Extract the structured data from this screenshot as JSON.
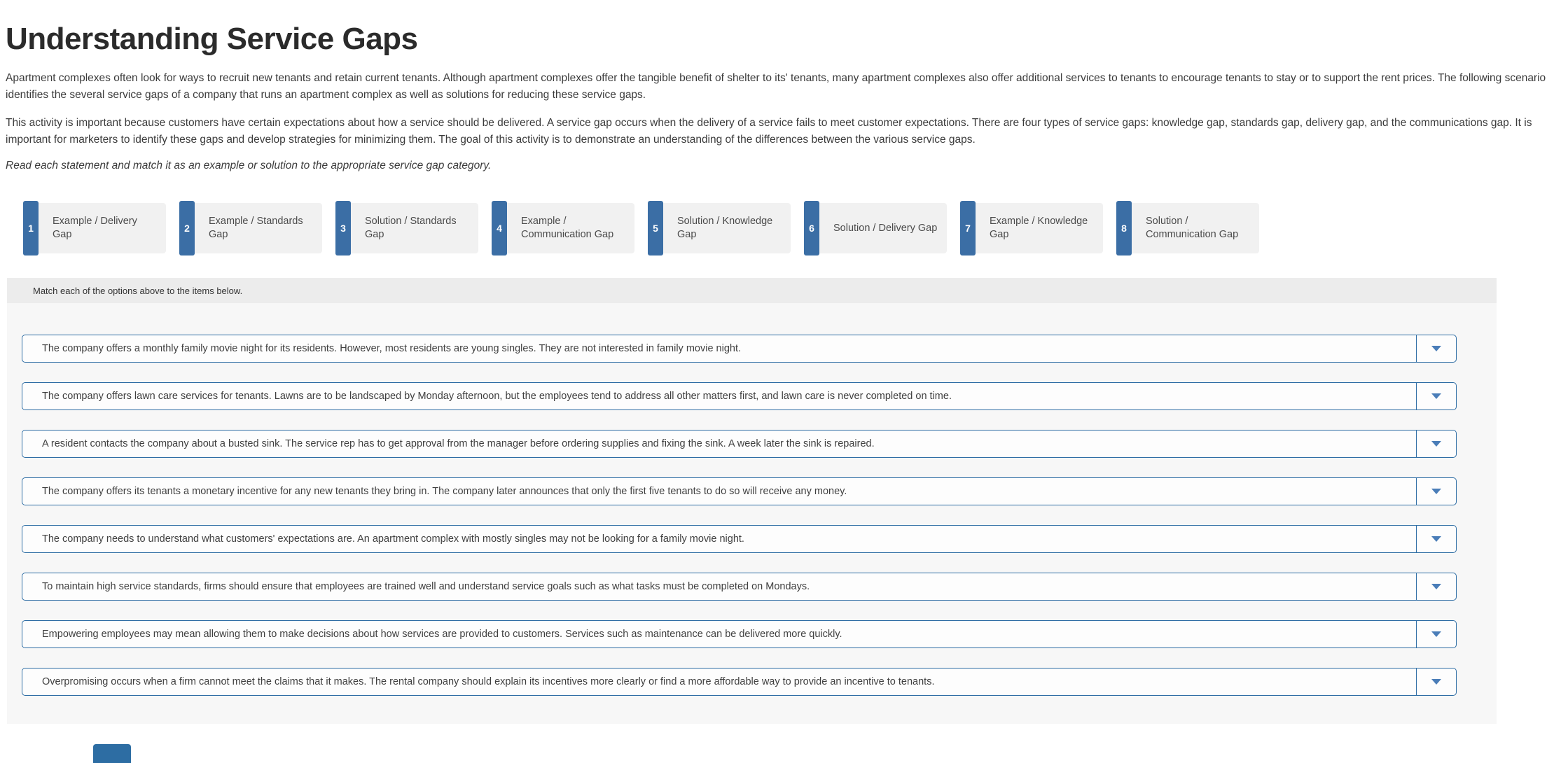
{
  "header": {
    "title": "Understanding Service Gaps"
  },
  "intro": {
    "paragraph_1": "Apartment complexes often look for ways to recruit new tenants and retain current tenants. Although apartment complexes offer the tangible benefit of shelter to its' tenants, many apartment complexes also offer additional services to tenants to encourage tenants to stay or to support the rent prices. The following scenario identifies the several service gaps of a company that runs an apartment complex as well as solutions for reducing these service gaps.",
    "paragraph_2": "This activity is important because customers have certain expectations about how a service should be delivered. A service gap occurs when the delivery of a service fails to meet customer expectations. There are four types of service gaps: knowledge gap, standards gap, delivery gap, and the communications gap. It is important for marketers to identify these gaps and develop strategies for minimizing them. The goal of this activity is to demonstrate an understanding of the differences between the various service gaps.",
    "instruction": "Read each statement and match it as an example or solution to the appropriate service gap category."
  },
  "options": [
    {
      "number": "1",
      "label": "Example / Delivery Gap"
    },
    {
      "number": "2",
      "label": "Example / Standards Gap"
    },
    {
      "number": "3",
      "label": "Solution / Standards Gap"
    },
    {
      "number": "4",
      "label": "Example / Communication Gap"
    },
    {
      "number": "5",
      "label": "Solution / Knowledge Gap"
    },
    {
      "number": "6",
      "label": "Solution / Delivery Gap"
    },
    {
      "number": "7",
      "label": "Example / Knowledge Gap"
    },
    {
      "number": "8",
      "label": "Solution / Communication Gap"
    }
  ],
  "match_section": {
    "header": "Match each of the options above to the items below.",
    "items": [
      {
        "text": "The company offers a monthly family movie night for its residents. However, most residents are young singles. They are not interested in family movie night."
      },
      {
        "text": "The company offers lawn care services for tenants. Lawns are to be landscaped by Monday afternoon, but the employees tend to address all other matters first, and lawn care is never completed on time."
      },
      {
        "text": "A resident contacts the company about a busted sink. The service rep has to get approval from the manager before ordering supplies and fixing the sink. A week later the sink is repaired."
      },
      {
        "text": "The company offers its tenants a monetary incentive for any new tenants they bring in. The company later announces that only the first five tenants to do so will receive any money."
      },
      {
        "text": "The company needs to understand what customers' expectations are. An apartment complex with mostly singles may not be looking for a family movie night."
      },
      {
        "text": "To maintain high service standards, firms should ensure that employees are trained well and understand service goals such as what tasks must be completed on Mondays."
      },
      {
        "text": "Empowering employees may mean allowing them to make decisions about how services are provided to customers. Services such as maintenance can be delivered more quickly."
      },
      {
        "text": "Overpromising occurs when a firm cannot meet the claims that it makes. The rental company should explain its incentives more clearly or find a more affordable way to provide an incentive to tenants."
      }
    ]
  },
  "icons": {
    "dropdown_caret": "caret-down"
  },
  "colors": {
    "accent_blue": "#3b6ea5",
    "row_border_blue": "#2e6da4",
    "caret_blue": "#4a7db8",
    "tile_body_gray": "#f1f1f1",
    "section_header_gray": "#ececec",
    "section_body_gray": "#f7f7f7",
    "text_dark": "#3b3b3b"
  }
}
